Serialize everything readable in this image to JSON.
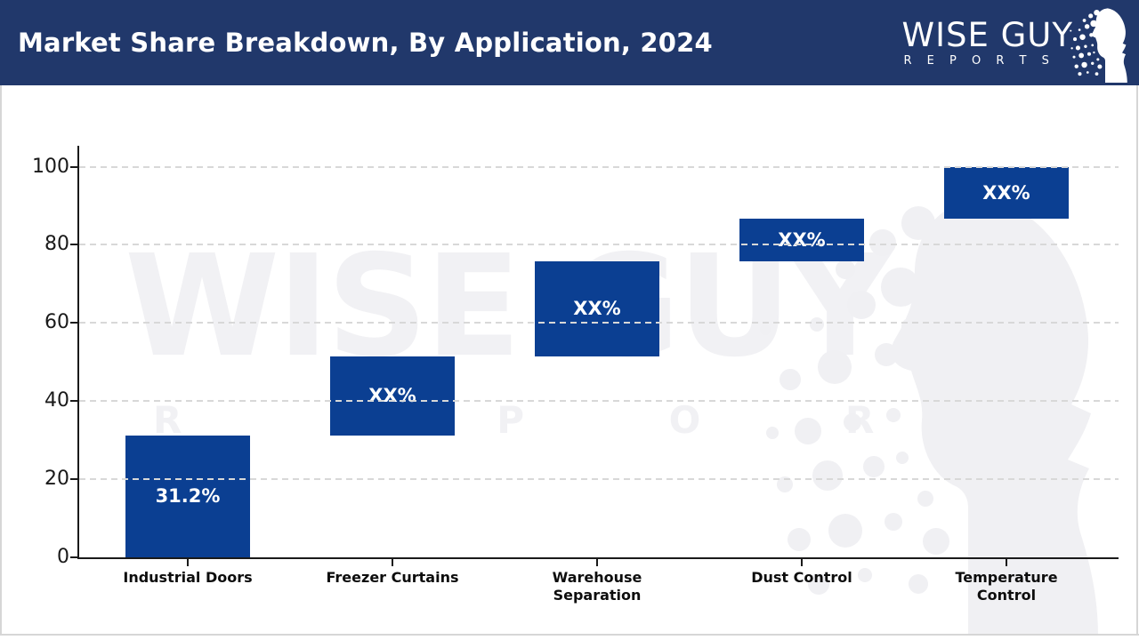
{
  "header": {
    "title": "Market Share Breakdown, By Application, 2024",
    "logo": {
      "wise_guy": "WISE GUY",
      "reports": "R E P O R T S"
    }
  },
  "watermark": {
    "big": "WISE GUY",
    "small": "R E P O R T S"
  },
  "colors": {
    "header_bg": "#21386B",
    "bar": "#0B3F92",
    "bar_label": "#FFFFFF",
    "axis": "#1A1A1A",
    "grid": "#D8D8D8",
    "tick_label": "#1A1A1A",
    "category_label": "#0D0D0D",
    "watermark": "#F1F1F4",
    "background": "#FFFFFF",
    "logo_text": "#FFFFFF"
  },
  "chart_data": {
    "type": "bar",
    "subtype": "waterfall",
    "title": "Market Share Breakdown, By Application, 2024",
    "xlabel": "",
    "ylabel": "",
    "ylim": [
      0,
      104
    ],
    "yticks": [
      0,
      20,
      40,
      60,
      80,
      100
    ],
    "grid": "horizontal-dashed, drawn over bars",
    "legend": "none",
    "categories": [
      "Industrial Doors",
      "Freezer Curtains",
      "Warehouse\nSeparation",
      "Dust Control",
      "Temperature\nControl"
    ],
    "segments": [
      {
        "category": "Industrial Doors",
        "start": 0,
        "end": 31.2,
        "value": 31.2,
        "label": "31.2%"
      },
      {
        "category": "Freezer Curtains",
        "start": 31.2,
        "end": 51.5,
        "value": 20.3,
        "label": "XX%"
      },
      {
        "category": "Warehouse Separation",
        "start": 51.5,
        "end": 75.7,
        "value": 24.2,
        "label": "XX%"
      },
      {
        "category": "Dust Control",
        "start": 75.7,
        "end": 86.8,
        "value": 11.1,
        "label": "XX%"
      },
      {
        "category": "Temperature Control",
        "start": 86.8,
        "end": 100.0,
        "value": 13.2,
        "label": "XX%"
      }
    ]
  }
}
